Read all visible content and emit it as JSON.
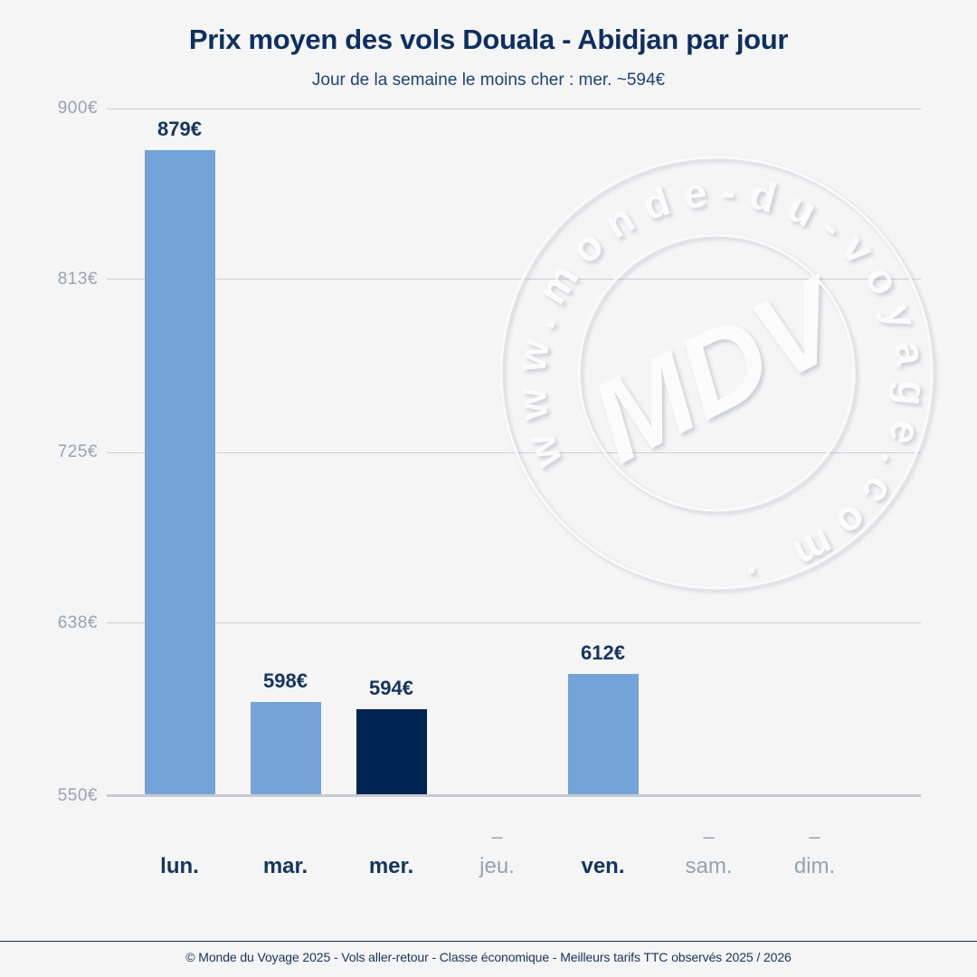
{
  "header": {
    "title": "Prix moyen des vols Douala - Abidjan par jour",
    "subtitle": "Jour de la semaine le moins cher : mer. ~594€"
  },
  "watermark": {
    "ring_text": "www.monde-du-voyage.com ·",
    "center_text": "MDV"
  },
  "footer": {
    "text": "© Monde du Voyage 2025 - Vols aller-retour - Classe économique - Meilleurs tarifs TTC observés 2025 / 2026"
  },
  "chart_data": {
    "type": "bar",
    "title": "Prix moyen des vols Douala - Abidjan par jour",
    "subtitle": "Jour de la semaine le moins cher : mer. ~594€",
    "categories": [
      "lun.",
      "mar.",
      "mer.",
      "jeu.",
      "ven.",
      "sam.",
      "dim."
    ],
    "values": [
      879,
      598,
      594,
      null,
      612,
      null,
      null
    ],
    "value_labels": [
      "879€",
      "598€",
      "594€",
      null,
      "612€",
      null,
      null
    ],
    "no_data_marker": "–",
    "highlight_index": 2,
    "xlabel": "",
    "ylabel": "",
    "ylim": [
      550,
      900
    ],
    "yticks": [
      {
        "value": 900,
        "label": "900€"
      },
      {
        "value": 813,
        "label": "813€"
      },
      {
        "value": 725,
        "label": "725€"
      },
      {
        "value": 638,
        "label": "638€"
      },
      {
        "value": 550,
        "label": "550€"
      }
    ],
    "grid": true,
    "legend": false,
    "colors": {
      "bar": "#73a3d9",
      "bar_highlight": "#002451",
      "label_active": "#14355f",
      "label_inactive": "#97a1af",
      "gridline": "#ccced4",
      "title": "#0e3060",
      "background": "#f5f5f6"
    }
  }
}
